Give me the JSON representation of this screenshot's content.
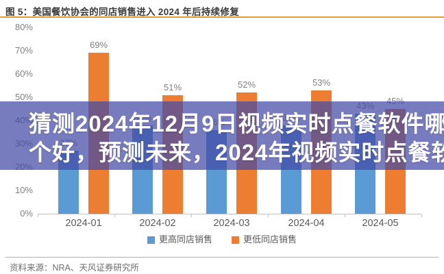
{
  "header": {
    "title": "图 5：美国餐饮协会的同店销售进入 2024 年后持续修复"
  },
  "overlay": {
    "line1": "猜测2024年12月9日视频实时点餐软件哪",
    "line2": "个好，预测未来，2024年视频实时点餐软"
  },
  "footer": {
    "source": "资料来源：NRA、天风证券研究所"
  },
  "chart_data": {
    "type": "bar",
    "title": "美国餐饮协会的同店销售进入 2024 年后持续修复",
    "categories": [
      "2024-01",
      "2024-02",
      "2024-03",
      "2024-04",
      "2024-05"
    ],
    "series": [
      {
        "name": "更高同店销售",
        "color": "#5B9BD5",
        "values": [
          27,
          38,
          36,
          38,
          43
        ]
      },
      {
        "name": "更低同店销售",
        "color": "#ED7D31",
        "values": [
          69,
          51,
          52,
          53,
          45
        ]
      }
    ],
    "unit": "%",
    "xlabel": "",
    "ylabel": "",
    "ylim": [
      0,
      80
    ],
    "ytick_step": 10,
    "grid": false,
    "data_labels": true,
    "legend_position": "bottom"
  },
  "colors": {
    "bar_blue": "#5B9BD5",
    "bar_orange": "#ED7D31",
    "overlay_band": "rgba(67,74,165,0.72)",
    "title_rule": "#E09A3C",
    "footer_rule": "#D2A972",
    "axis_text": "#7F7F7F",
    "category_text": "#595959"
  }
}
